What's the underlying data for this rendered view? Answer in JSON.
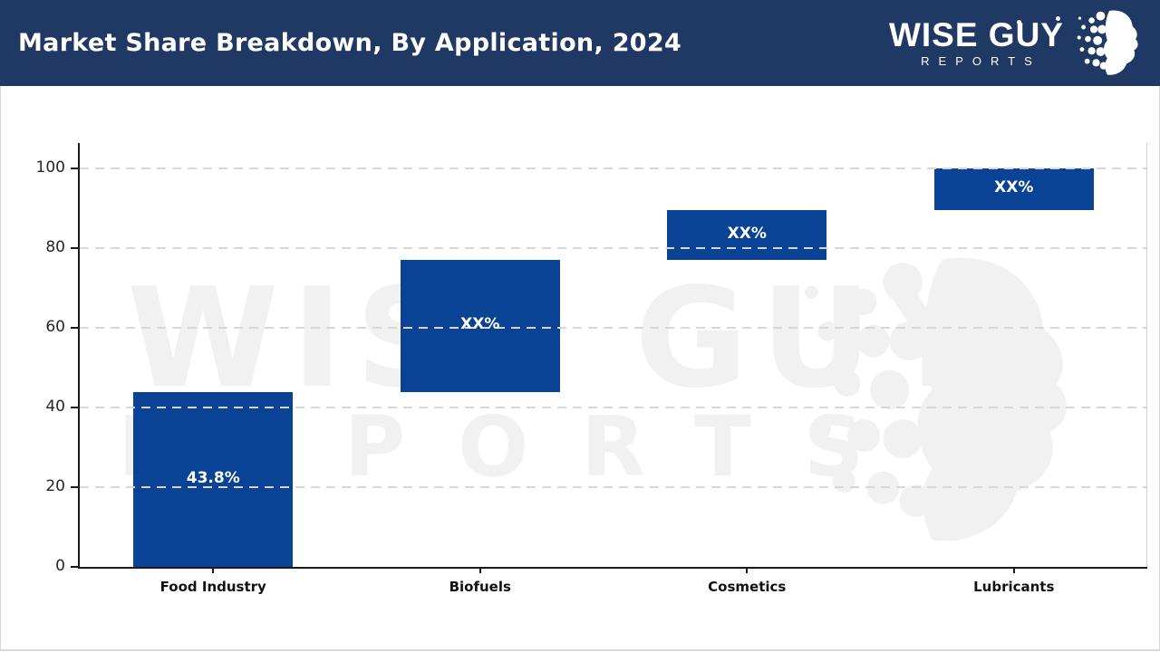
{
  "header": {
    "title": "Market Share Breakdown, By Application, 2024",
    "logo": {
      "line1": "WISE GUY",
      "line2": "REPORTS"
    }
  },
  "watermark": {
    "line1": "WISE GUY",
    "line2": "REPORTS"
  },
  "chart_data": {
    "type": "bar",
    "subtype": "waterfall",
    "title": "Market Share Breakdown, By Application, 2024",
    "categories": [
      "Food Industry",
      "Biofuels",
      "Cosmetics",
      "Lubricants"
    ],
    "segments": [
      {
        "category": "Food Industry",
        "start": 0,
        "end": 43.8,
        "label": "43.8%"
      },
      {
        "category": "Biofuels",
        "start": 43.8,
        "end": 77.0,
        "label": "XX%"
      },
      {
        "category": "Cosmetics",
        "start": 77.0,
        "end": 89.5,
        "label": "XX%"
      },
      {
        "category": "Lubricants",
        "start": 89.5,
        "end": 100,
        "label": "XX%"
      }
    ],
    "yticks": [
      0,
      20,
      40,
      60,
      80,
      100
    ],
    "ylim": [
      0,
      106.5
    ],
    "xlabel": "",
    "ylabel": "",
    "grid": "horizontal-dashed",
    "legend": false,
    "colors": {
      "bar": "#0a4296",
      "bar_label": "#ffffff",
      "header_bg": "#1f3864",
      "grid": "#d7d7d7",
      "axis": "#1a1a1a",
      "watermark": "#f1f1f1"
    }
  }
}
